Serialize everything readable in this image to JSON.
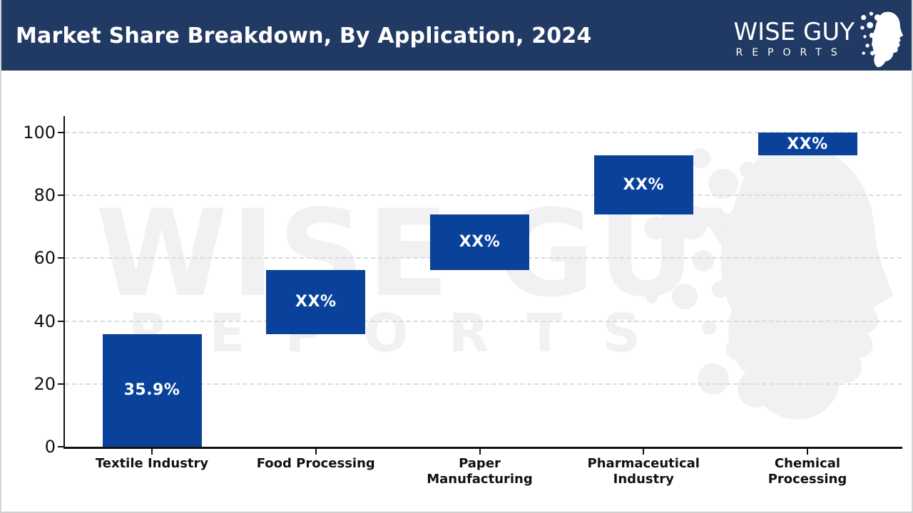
{
  "header": {
    "title": "Market Share Breakdown, By Application, 2024",
    "logo": {
      "brand_top": "WISE GUY",
      "brand_bottom": "REPORTS"
    }
  },
  "watermark": {
    "line1": "WISE GUY",
    "line2": "REPORTS"
  },
  "colors": {
    "header_bg": "#213a63",
    "bar": "#09419b",
    "bar_label": "#ffffff",
    "axis": "#111111",
    "grid": "#dbdbdb",
    "watermark": "#f1f1f3"
  },
  "chart_data": {
    "type": "bar",
    "subtype": "waterfall",
    "title": "Market Share Breakdown, By Application, 2024",
    "xlabel": "",
    "ylabel": "",
    "ylim": [
      0,
      105
    ],
    "yticks": [
      0,
      20,
      40,
      60,
      80,
      100
    ],
    "grid": "horizontal-dashed",
    "legend": "none",
    "categories": [
      "Textile Industry",
      "Food Processing",
      "Paper\nManufacturing",
      "Pharmaceutical\nIndustry",
      "Chemical\nProcessing"
    ],
    "segments": [
      {
        "category": "Textile Industry",
        "start": 0,
        "end": 35.9,
        "label": "35.9%"
      },
      {
        "category": "Food Processing",
        "start": 35.9,
        "end": 56.3,
        "label": "XX%"
      },
      {
        "category": "Paper Manufacturing",
        "start": 56.3,
        "end": 74.0,
        "label": "XX%"
      },
      {
        "category": "Pharmaceutical Industry",
        "start": 74.0,
        "end": 92.7,
        "label": "XX%"
      },
      {
        "category": "Chemical Processing",
        "start": 92.7,
        "end": 100.0,
        "label": "XX%"
      }
    ]
  }
}
